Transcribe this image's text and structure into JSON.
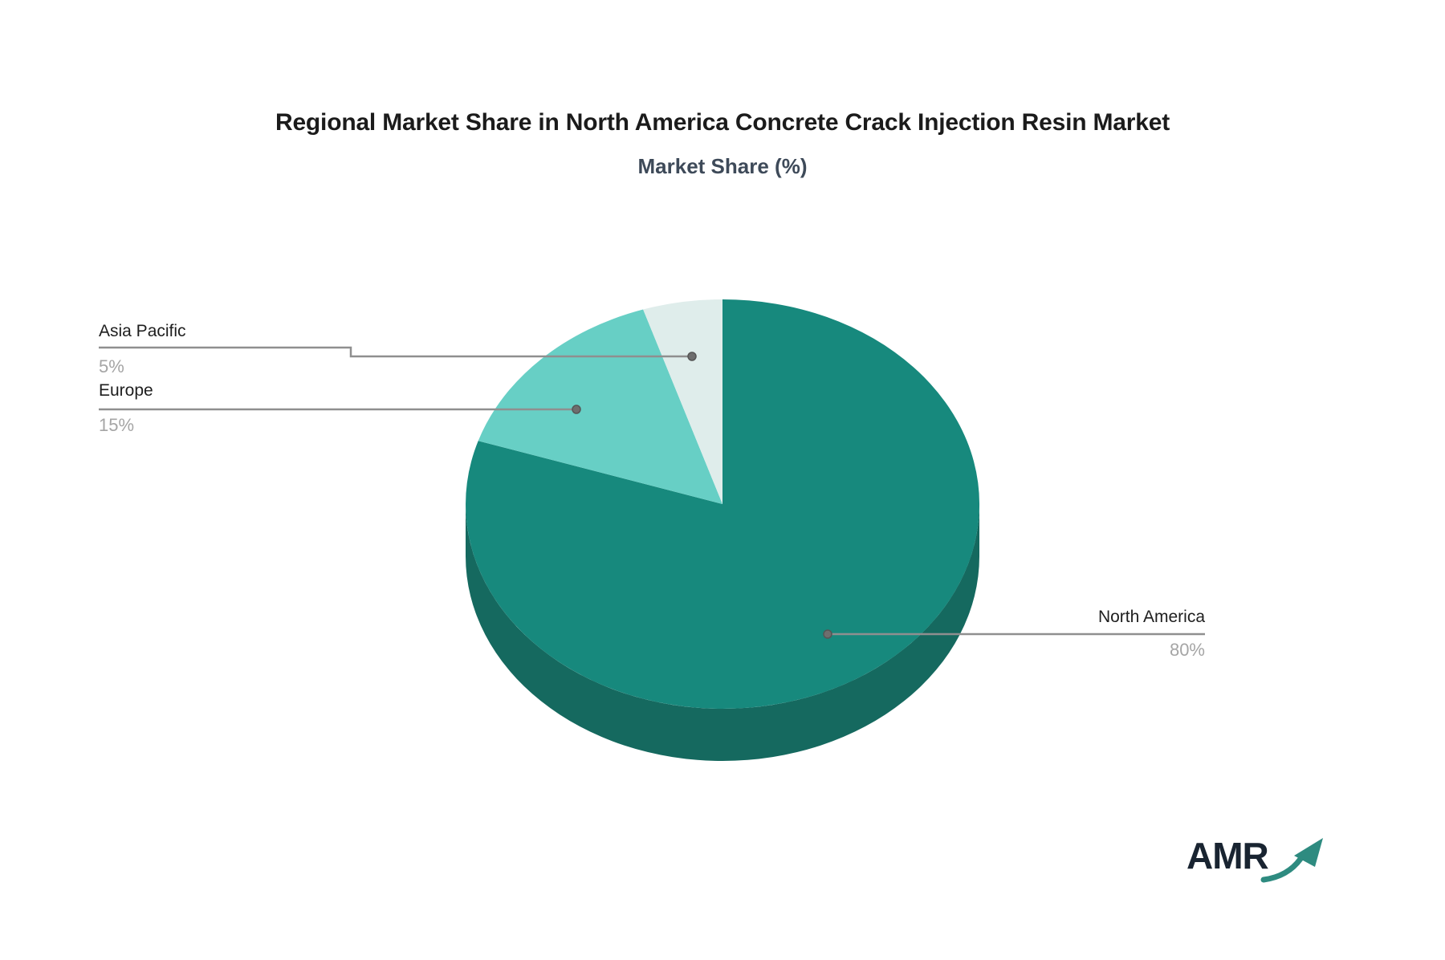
{
  "chart": {
    "title": "Regional Market Share in North America Concrete Crack Injection Resin Market",
    "subtitle": "Market Share (%)"
  },
  "chart_data": {
    "type": "pie",
    "style": "3d",
    "title": "Regional Market Share in North America Concrete Crack Injection Resin Market",
    "subtitle": "Market Share (%)",
    "categories": [
      "North America",
      "Europe",
      "Asia Pacific"
    ],
    "values": [
      80,
      15,
      5
    ],
    "value_labels": [
      "80%",
      "15%",
      "5%"
    ],
    "unit": "%",
    "colors": [
      "#17897d",
      "#67cfc5",
      "#dfedeb"
    ],
    "side_color": "#15695f",
    "start_angle_deg": 0,
    "direction": "clockwise",
    "legend": "none",
    "background": "#ffffff",
    "annotations": [
      {
        "label": "North America",
        "value_label": "80%",
        "position": "right"
      },
      {
        "label": "Europe",
        "value_label": "15%",
        "position": "left"
      },
      {
        "label": "Asia Pacific",
        "value_label": "5%",
        "position": "left"
      }
    ]
  },
  "style_colors": {
    "title_text": "#1b1b1b",
    "subtitle_text": "#3e4a59",
    "callout_label_text": "#1e1e1e",
    "callout_value_text": "#a5a5a5",
    "leader_line": "#8f8f8f",
    "leader_dot": "#6e6e6e",
    "logo_text": "#192431",
    "logo_arrow": "#2e8b80"
  },
  "logo": {
    "text": "AMR",
    "arrow_icon": "trending-up-arrow"
  }
}
